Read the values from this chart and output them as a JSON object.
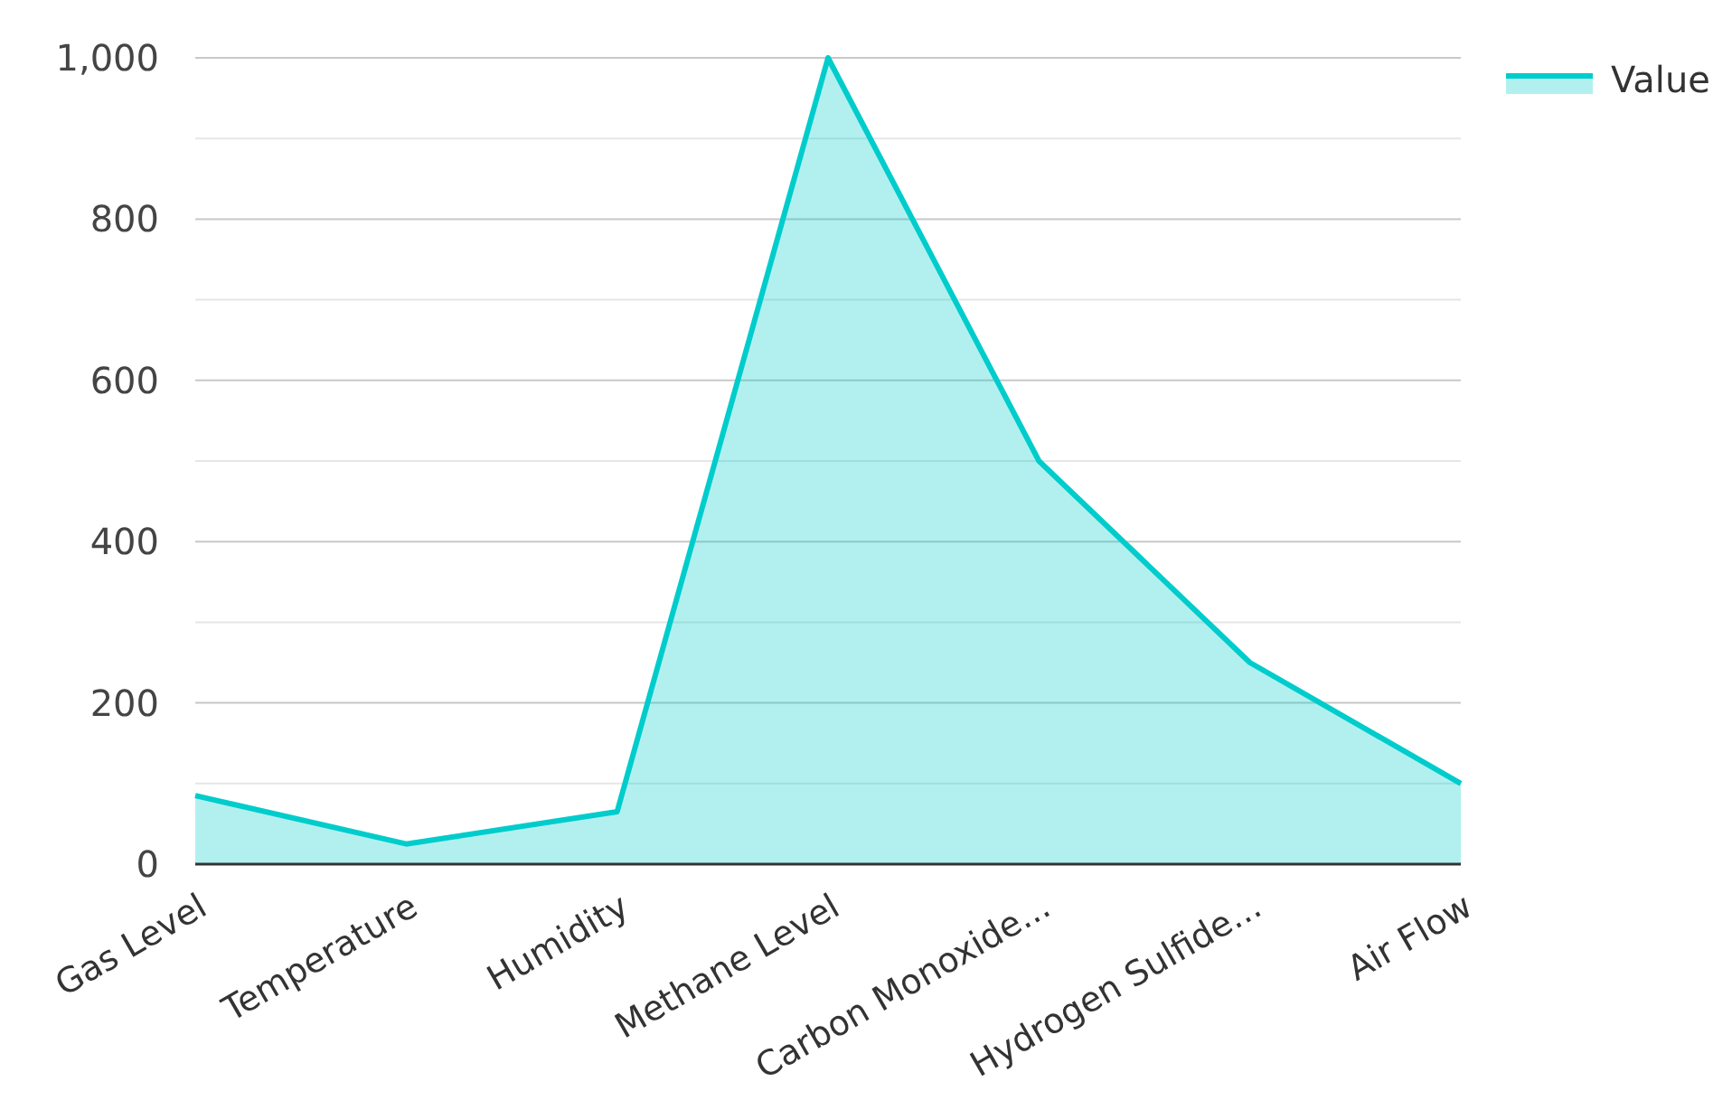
{
  "chart_data": {
    "type": "area",
    "categories": [
      "Gas Level",
      "Temperature",
      "Humidity",
      "Methane Level",
      "Carbon Monoxide...",
      "Hydrogen Sulfide...",
      "Air Flow"
    ],
    "series": [
      {
        "name": "Value",
        "color": "#00cccc",
        "values": [
          85,
          25,
          65,
          1000,
          500,
          250,
          100
        ]
      }
    ],
    "ylim": [
      0,
      1000
    ],
    "yticks": [
      0,
      {
        "value": 100,
        "label": null
      },
      200,
      {
        "value": 300,
        "label": null
      },
      400,
      {
        "value": 500,
        "label": null
      },
      600,
      {
        "value": 700,
        "label": null
      },
      800,
      {
        "value": 900,
        "label": null
      },
      {
        "value": 1000,
        "label": "1,000"
      }
    ],
    "grid": "y",
    "legend": "top right"
  }
}
